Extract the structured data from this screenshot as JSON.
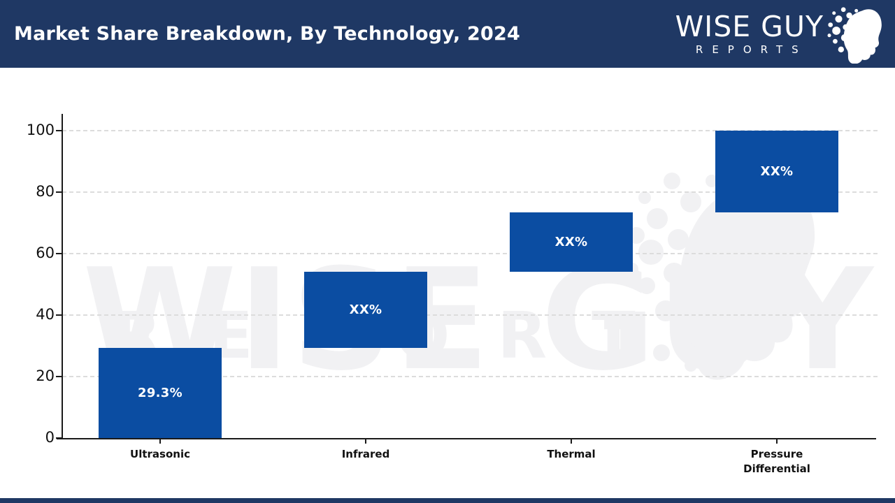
{
  "header": {
    "title": "Market Share Breakdown, By Technology, 2024",
    "logo_line1": "WISE GUY",
    "logo_line2": "REPORTS"
  },
  "watermark": {
    "line1": "WISE GUY",
    "line2": "REPORTS"
  },
  "colors": {
    "header_bg": "#1f3864",
    "bar": "#0b4da2",
    "grid": "#dcdcdc",
    "axis": "#1a1a1a",
    "watermark": "#f1f1f3",
    "bar_label": "#ffffff"
  },
  "chart_data": {
    "type": "bar",
    "subtype": "waterfall",
    "title": "Market Share Breakdown, By Technology, 2024",
    "categories": [
      "Ultrasonic",
      "Infrared",
      "Thermal",
      "Pressure Differential"
    ],
    "segments": [
      {
        "category": "Ultrasonic",
        "start": 0,
        "end": 29.3,
        "label": "29.3%"
      },
      {
        "category": "Infrared",
        "start": 29.3,
        "end": 54,
        "label": "XX%"
      },
      {
        "category": "Thermal",
        "start": 54,
        "end": 73.5,
        "label": "XX%"
      },
      {
        "category": "Pressure Differential",
        "start": 73.5,
        "end": 100,
        "label": "XX%"
      }
    ],
    "y_ticks": [
      0,
      20,
      40,
      60,
      80,
      100
    ],
    "ylim": [
      0,
      105
    ],
    "xlabel": "",
    "ylabel": "",
    "grid": "horizontal-dashed",
    "legend": "none",
    "bar_color": "#0b4da2"
  }
}
